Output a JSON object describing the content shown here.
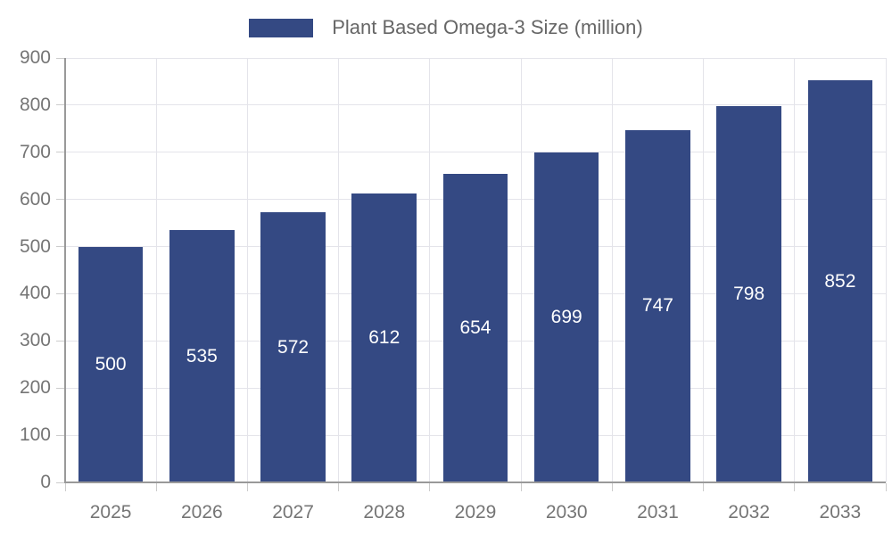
{
  "legend": {
    "label": "Plant Based Omega-3 Size (million)"
  },
  "colors": {
    "bar": "#344983",
    "bar_label": "#ffffff",
    "axis_text": "#757575",
    "legend_text": "#666666",
    "grid": "#e4e4ea",
    "axis_line": "#999999",
    "tick": "#cccccc",
    "background": "#ffffff"
  },
  "chart_data": {
    "type": "bar",
    "title": "Plant Based Omega-3 Size (million)",
    "categories": [
      "2025",
      "2026",
      "2027",
      "2028",
      "2029",
      "2030",
      "2031",
      "2032",
      "2033"
    ],
    "series": [
      {
        "name": "Plant Based Omega-3 Size (million)",
        "values": [
          500,
          535,
          572,
          612,
          654,
          699,
          747,
          798,
          852
        ]
      }
    ],
    "xlabel": "",
    "ylabel": "",
    "ylim": [
      0,
      900
    ],
    "ytick_interval": 100,
    "grid": true,
    "legend_position": "top",
    "bar_labels_inside": true,
    "bar_label_position": "center"
  }
}
